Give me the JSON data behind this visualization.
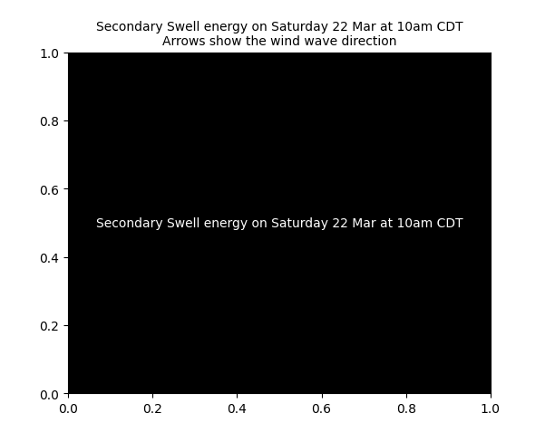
{
  "title": "Secondary Swell energy on Saturday 22 Mar at 10am CDT",
  "subtitle": "Arrows show the wind wave direction",
  "title_fontsize": 13,
  "subtitle_fontsize": 10,
  "background_color": "#ffffff",
  "map_extent": [
    -125,
    -66.5,
    24,
    50
  ],
  "ocean_color": "#000000",
  "land_color": "#aaaaaa",
  "border_color": "#000000",
  "arrow_color": "#00ffcc",
  "title_bg": "#f0f0f0"
}
